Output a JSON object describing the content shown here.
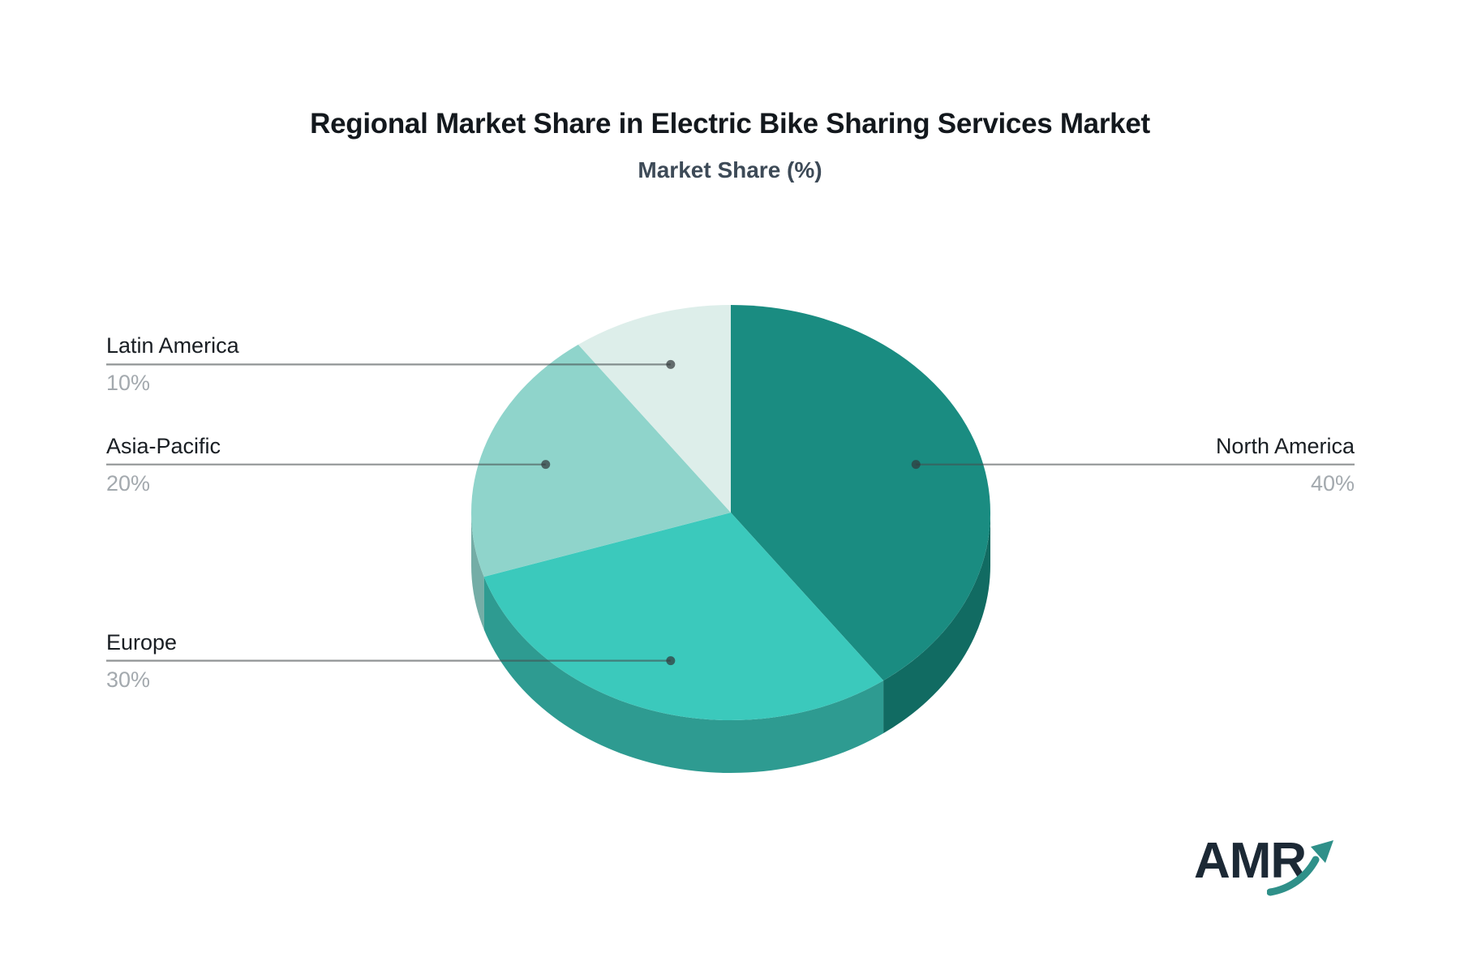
{
  "header": {
    "title": "Regional Market Share in Electric Bike Sharing Services Market",
    "subtitle": "Market Share (%)"
  },
  "chart_data": {
    "type": "pie",
    "style": "3d",
    "title": "Regional Market Share in Electric Bike Sharing Services Market",
    "subtitle": "Market Share (%)",
    "unit": "%",
    "legend": "none",
    "start_angle_deg": 90,
    "direction": "clockwise",
    "categories": [
      "North America",
      "Europe",
      "Asia-Pacific",
      "Latin America"
    ],
    "values": [
      40,
      30,
      20,
      10
    ],
    "slices": [
      {
        "label": "North America",
        "value": 40,
        "pct_label": "40%",
        "color": "#1a8c81",
        "side_color": "#116b62",
        "label_side": "right"
      },
      {
        "label": "Europe",
        "value": 30,
        "pct_label": "30%",
        "color": "#3bc9bc",
        "side_color": "#2e9b91",
        "label_side": "left"
      },
      {
        "label": "Asia-Pacific",
        "value": 20,
        "pct_label": "20%",
        "color": "#8fd4cb",
        "side_color": "#74ada6",
        "label_side": "left"
      },
      {
        "label": "Latin America",
        "value": 10,
        "pct_label": "10%",
        "color": "#ddeeea",
        "side_color": "#cbe4df",
        "label_side": "left"
      }
    ],
    "leader_line_color": "rgba(70,76,79,0.6)",
    "leader_dot_color": "rgba(50,57,60,0.72)",
    "label_text_color": "#191e23",
    "percent_text_color": "#a3a9ae"
  },
  "logo": {
    "text": "AMR",
    "color": "#1c2935",
    "arrow_color": "#2f9089"
  }
}
